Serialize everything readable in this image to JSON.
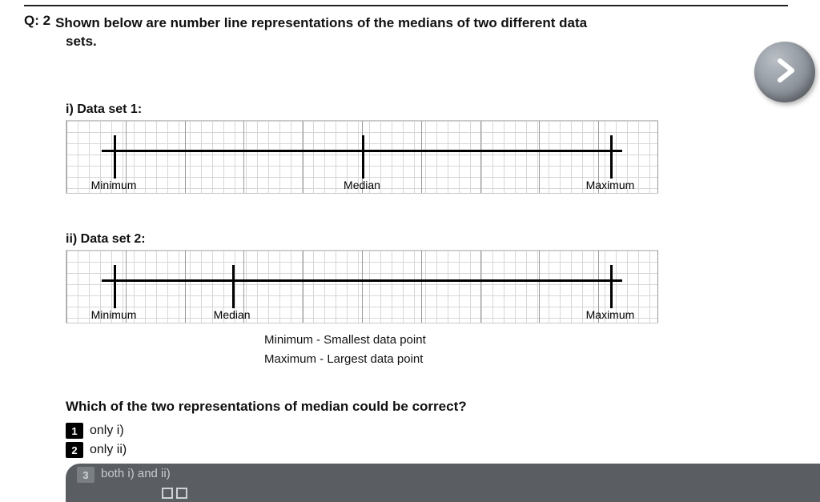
{
  "question": {
    "label": "Q: 2",
    "text_line1": "Shown below are number line representations of the medians of two different data",
    "text_line2": "sets."
  },
  "dataset1": {
    "label": "i) Data set 1:",
    "axis": {
      "start_pct": 6,
      "end_pct": 94
    },
    "ticks": [
      {
        "pos_pct": 8,
        "label": "Minimum"
      },
      {
        "pos_pct": 50,
        "label": "Median"
      },
      {
        "pos_pct": 92,
        "label": "Maximum"
      }
    ],
    "major_gridlines_pct": [
      0,
      10,
      20,
      30,
      40,
      50,
      60,
      70,
      80,
      90,
      100
    ]
  },
  "dataset2": {
    "label": "ii) Data set 2:",
    "axis": {
      "start_pct": 6,
      "end_pct": 94
    },
    "ticks": [
      {
        "pos_pct": 8,
        "label": "Minimum"
      },
      {
        "pos_pct": 28,
        "label": "Median"
      },
      {
        "pos_pct": 92,
        "label": "Maximum"
      }
    ],
    "major_gridlines_pct": [
      0,
      10,
      20,
      30,
      40,
      50,
      60,
      70,
      80,
      90,
      100
    ]
  },
  "legend": {
    "line1": "Minimum - Smallest data point",
    "line2": "Maximum - Largest data point"
  },
  "which_text": "Which of the two representations of median could be correct?",
  "options": {
    "o1_num": "1",
    "o1_text": "only i)",
    "o2_num": "2",
    "o2_text": "only ii)",
    "o3_num": "3",
    "o3_text": "both i) and ii)"
  },
  "colors": {
    "grid_minor": "#d7d7d7",
    "grid_major": "#9a9a9a",
    "axis": "#000000",
    "nav_bg": "#8a9098",
    "bottom_bar": "#5a5e63"
  }
}
